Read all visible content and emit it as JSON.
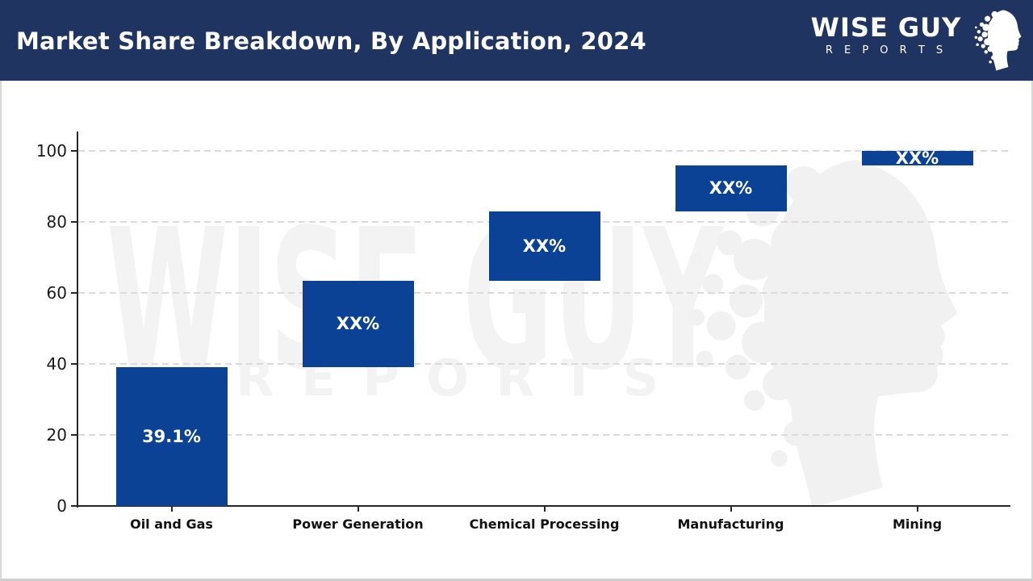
{
  "header": {
    "title": "Market Share Breakdown, By Application, 2024",
    "logo": {
      "name": "WISE GUY",
      "tagline": "R E P O R T S"
    }
  },
  "watermark": {
    "line1": "WISE GUY",
    "line2": "R E P O R T S"
  },
  "chart_data": {
    "type": "bar",
    "subtype": "waterfall",
    "title": "Market Share Breakdown, By Application, 2024",
    "categories": [
      "Oil and Gas",
      "Power Generation",
      "Chemical Processing",
      "Manufacturing",
      "Mining"
    ],
    "segments": [
      {
        "category": "Oil and Gas",
        "label": "39.1%",
        "start": 0,
        "end": 39.1
      },
      {
        "category": "Power Generation",
        "label": "XX%",
        "start": 39.1,
        "end": 63.5
      },
      {
        "category": "Chemical Processing",
        "label": "XX%",
        "start": 63.5,
        "end": 83
      },
      {
        "category": "Manufacturing",
        "label": "XX%",
        "start": 83,
        "end": 96
      },
      {
        "category": "Mining",
        "label": "XX%",
        "start": 96,
        "end": 100
      }
    ],
    "yticks": [
      0,
      20,
      40,
      60,
      80,
      100
    ],
    "ylim": [
      0,
      105.5
    ],
    "xlabel": "",
    "ylabel": "",
    "grid": "horizontal-dashed",
    "legend": "none",
    "colors": {
      "bar": "#0b4296",
      "bar_label": "#ffffff",
      "axis": "#262626",
      "gridline": "#dbdbdb",
      "tick_label": "#1a1a1a"
    }
  },
  "colors": {
    "header_bg": "#203462",
    "content_bg": "#ffffff",
    "watermark": "#f3f3f3"
  }
}
